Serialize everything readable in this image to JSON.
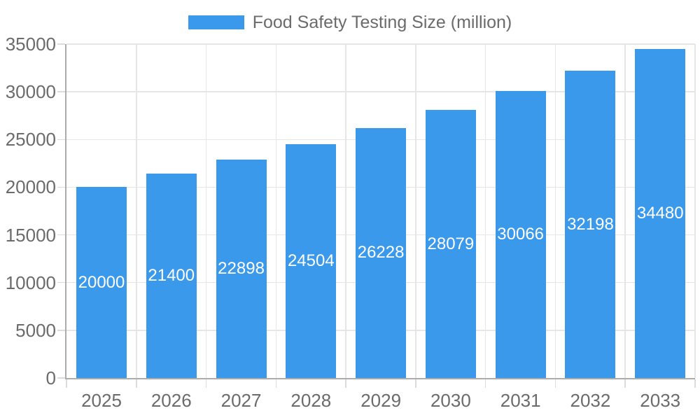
{
  "legend": {
    "label": "Food Safety Testing Size (million)"
  },
  "chart_data": {
    "type": "bar",
    "title": "Food Safety Testing Size (million)",
    "categories": [
      "2025",
      "2026",
      "2027",
      "2028",
      "2029",
      "2030",
      "2031",
      "2032",
      "2033"
    ],
    "series": [
      {
        "name": "Food Safety Testing Size (million)",
        "values": [
          20000,
          21400,
          22898,
          24504,
          26228,
          28079,
          30066,
          32198,
          34480
        ]
      }
    ],
    "bar_labels": [
      "20000",
      "21400",
      "22898",
      "24504",
      "26228",
      "28079",
      "30066",
      "32198",
      "34480"
    ],
    "xlabel": "",
    "ylabel": "",
    "ylim": [
      0,
      35000
    ],
    "ytick_step": 5000,
    "yticks": [
      0,
      5000,
      10000,
      15000,
      20000,
      25000,
      30000,
      35000
    ],
    "legend_position": "top",
    "grid": true,
    "colors": {
      "bar": "#3B99EC",
      "bar_label_text": "#FFFFFF",
      "axis_text": "#6B6B6B",
      "grid_line": "#E6E6E6",
      "tick_line": "#DCDCDC",
      "axis_line": "#ACACAC",
      "background": "#FFFFFF"
    }
  }
}
